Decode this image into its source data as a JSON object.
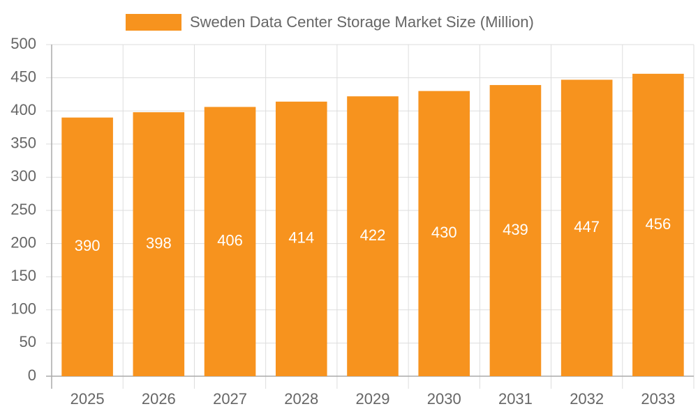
{
  "chart_data": {
    "type": "bar",
    "categories": [
      "2025",
      "2026",
      "2027",
      "2028",
      "2029",
      "2030",
      "2031",
      "2032",
      "2033"
    ],
    "series": [
      {
        "name": "Sweden Data Center Storage Market Size (Million)",
        "color": "#f7931e",
        "values": [
          390,
          398,
          406,
          414,
          422,
          430,
          439,
          447,
          456
        ]
      }
    ],
    "ylim": [
      0,
      500
    ],
    "yticks": [
      0,
      50,
      100,
      150,
      200,
      250,
      300,
      350,
      400,
      450,
      500
    ],
    "grid": true,
    "legend": "top",
    "data_labels": true
  }
}
